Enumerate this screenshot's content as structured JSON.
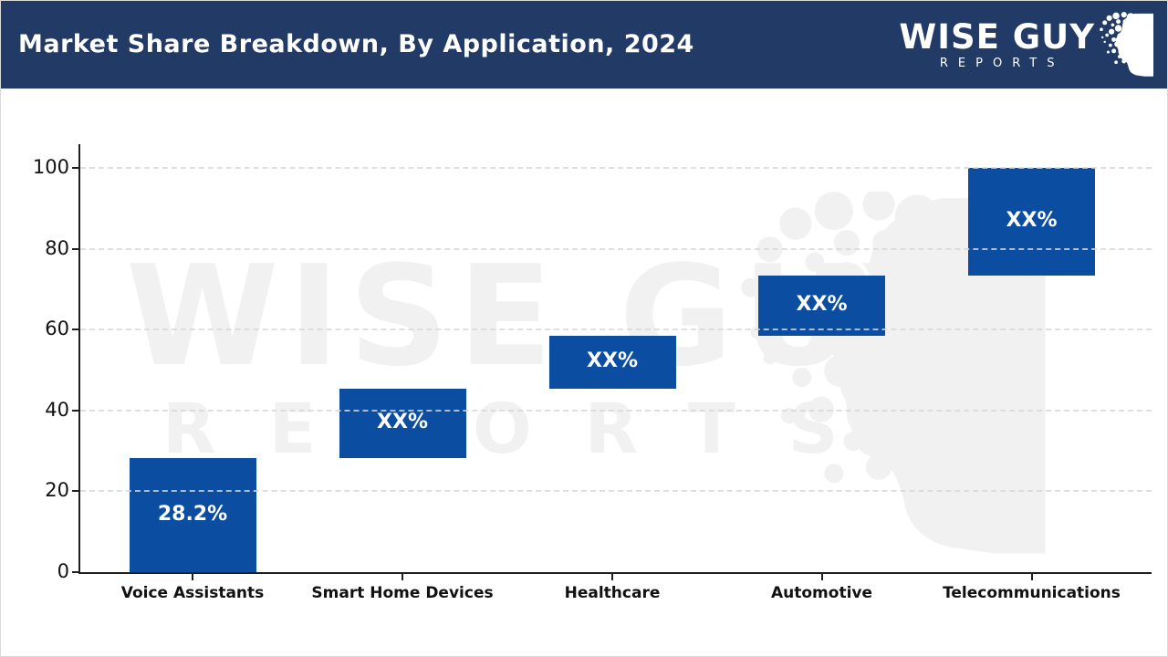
{
  "header": {
    "title": "Market Share Breakdown, By Application, 2024",
    "logo": {
      "line1": "WISE GUY",
      "line2": "REPORTS"
    }
  },
  "watermark": {
    "line1": "WISE GUY",
    "line2": "REPORTS"
  },
  "colors": {
    "header_bg": "#213a66",
    "bar": "#0b4da1",
    "grid": "#d8d8d8",
    "axis": "#1f1f1f",
    "text": "#111111",
    "on_bar": "#ffffff",
    "watermark": "#f1f1f1",
    "frame": "#d9d9d9"
  },
  "chart_data": {
    "type": "bar",
    "subtype": "waterfall",
    "title": "Market Share Breakdown, By Application, 2024",
    "xlabel": "",
    "ylabel": "",
    "ylim": [
      0,
      100
    ],
    "yticks": [
      0,
      20,
      40,
      60,
      80,
      100
    ],
    "grid": "horizontal-dashed",
    "legend": "none",
    "categories": [
      "Voice Assistants",
      "Smart Home Devices",
      "Healthcare",
      "Automotive",
      "Telecommunications"
    ],
    "bars": [
      {
        "label": "Voice Assistants",
        "display": "28.2%",
        "value": 28.2,
        "start": 0,
        "end": 28.2
      },
      {
        "label": "Smart Home Devices",
        "display": "XX%",
        "value": 17.2,
        "start": 28.2,
        "end": 45.4
      },
      {
        "label": "Healthcare",
        "display": "XX%",
        "value": 13.0,
        "start": 45.4,
        "end": 58.4
      },
      {
        "label": "Automotive",
        "display": "XX%",
        "value": 15.0,
        "start": 58.4,
        "end": 73.4
      },
      {
        "label": "Telecommunications",
        "display": "XX%",
        "value": 26.6,
        "start": 73.4,
        "end": 100
      }
    ]
  }
}
